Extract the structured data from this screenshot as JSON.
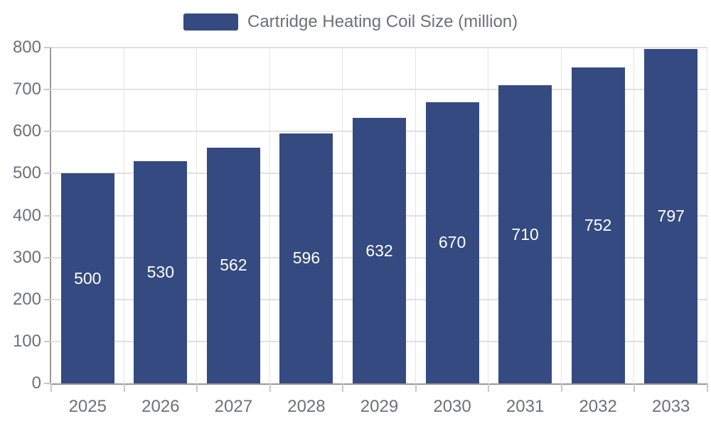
{
  "legend": {
    "label": "Cartridge Heating Coil Size (million)"
  },
  "chart_data": {
    "type": "bar",
    "title": "",
    "categories": [
      "2025",
      "2026",
      "2027",
      "2028",
      "2029",
      "2030",
      "2031",
      "2032",
      "2033"
    ],
    "series": [
      {
        "name": "Cartridge Heating Coil Size (million)",
        "values": [
          500,
          530,
          562,
          596,
          632,
          670,
          710,
          752,
          797
        ]
      }
    ],
    "xlabel": "",
    "ylabel": "",
    "ylim": [
      0,
      800
    ],
    "y_ticks": [
      0,
      100,
      200,
      300,
      400,
      500,
      600,
      700,
      800
    ],
    "grid": true,
    "legend_position": "top-center",
    "value_labels_shown": true,
    "colors": {
      "bar": "#344a81",
      "value_label": "#ffffff",
      "axis_text": "#6e7079",
      "gridline": "#e0e0e0",
      "axis_line": "#999999",
      "background": "#ffffff"
    }
  }
}
